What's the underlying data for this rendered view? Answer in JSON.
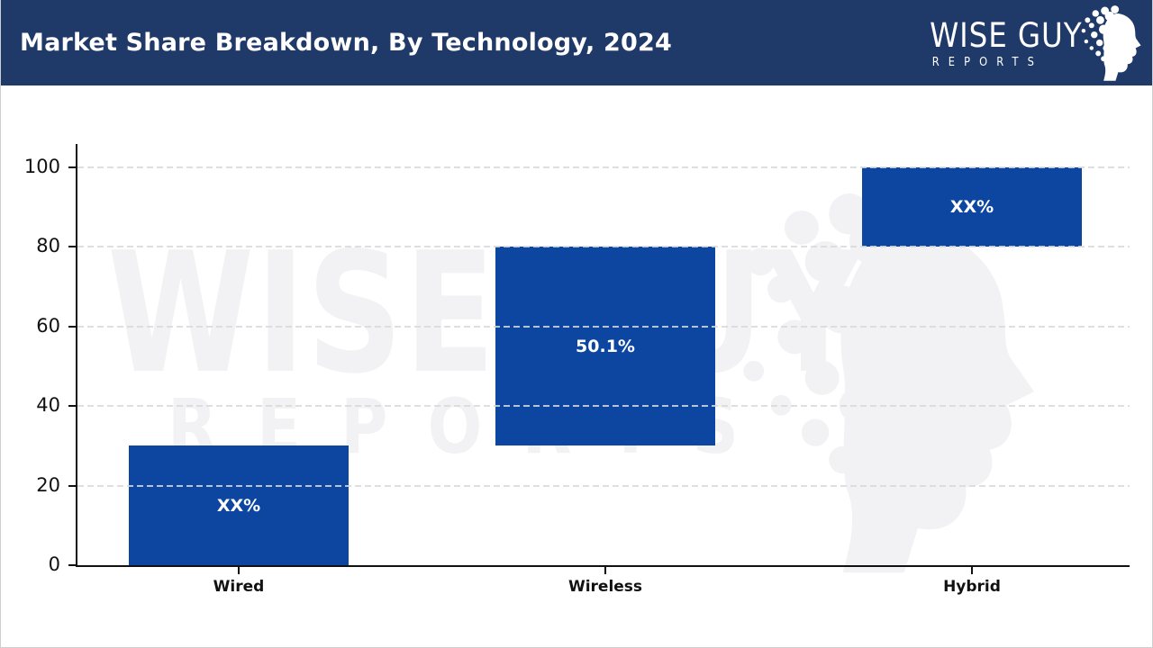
{
  "header": {
    "title": "Market Share Breakdown, By Technology, 2024",
    "bg_color": "#1f3a68",
    "logo": {
      "line1": "WISE GUY",
      "line2": "REPORTS"
    }
  },
  "watermark": {
    "line1": "WISE GUY",
    "line2": "REPORTS"
  },
  "chart_data": {
    "type": "bar",
    "variant": "floating-segment-bars",
    "title": "Market Share Breakdown, By Technology, 2024",
    "categories": [
      "Wired",
      "Wireless",
      "Hybrid"
    ],
    "segments": [
      {
        "category": "Wired",
        "start": 0,
        "end": 30,
        "label": "XX%"
      },
      {
        "category": "Wireless",
        "start": 30,
        "end": 80,
        "label": "50.1%"
      },
      {
        "category": "Hybrid",
        "start": 80,
        "end": 100,
        "label": "XX%"
      }
    ],
    "y_ticks": [
      0,
      20,
      40,
      60,
      80,
      100
    ],
    "ylim": [
      0,
      106
    ],
    "xlabel": "",
    "ylabel": "",
    "grid": "dashed-horizontal-over-bars",
    "legend": "none",
    "bar_color": "#0c46a0",
    "bar_label_color": "#ffffff",
    "gridline_color": "#d9d9d9",
    "axis_color": "#111111"
  }
}
